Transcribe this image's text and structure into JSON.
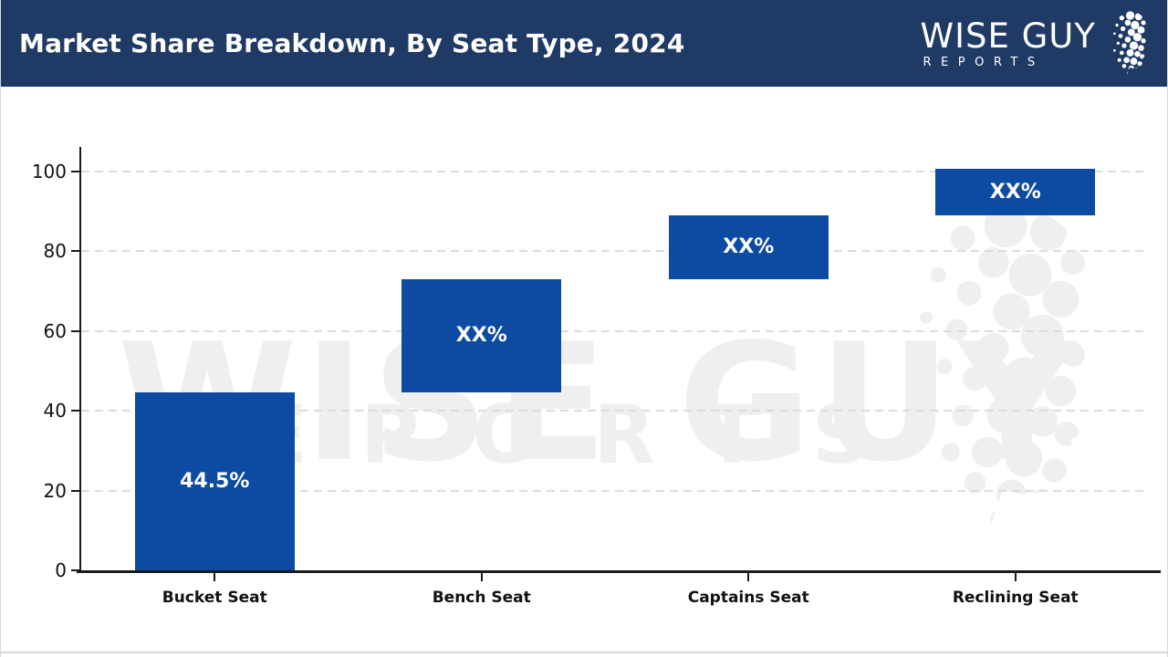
{
  "header": {
    "title": "Market Share Breakdown, By Seat Type, 2024",
    "logo": {
      "line1": "WISE GUY",
      "line2": "REPORTS"
    },
    "bg_color": "#203A66"
  },
  "watermark": {
    "line1": "WISE GUY",
    "line2": "REPORTS"
  },
  "chart_data": {
    "type": "bar",
    "subtype": "waterfall",
    "title": "Market Share Breakdown, By Seat Type, 2024",
    "categories": [
      "Bucket Seat",
      "Bench Seat",
      "Captains Seat",
      "Reclining Seat"
    ],
    "segments": [
      {
        "category": "Bucket Seat",
        "start": 0,
        "end": 44.5,
        "label": "44.5%"
      },
      {
        "category": "Bench Seat",
        "start": 44.5,
        "end": 73,
        "label": "XX%"
      },
      {
        "category": "Captains Seat",
        "start": 73,
        "end": 89,
        "label": "XX%"
      },
      {
        "category": "Reclining Seat",
        "start": 89,
        "end": 100.5,
        "label": "XX%"
      }
    ],
    "xlabel": "",
    "ylabel": "",
    "ylim": [
      0,
      105.6
    ],
    "yticks": [
      0,
      20,
      40,
      60,
      80,
      100
    ],
    "grid": "horizontal-dashed",
    "legend": "none",
    "bar_color": "#0D4AA1",
    "bar_label_color": "#FFFFFF",
    "axis_color": "#1a1a1a"
  }
}
